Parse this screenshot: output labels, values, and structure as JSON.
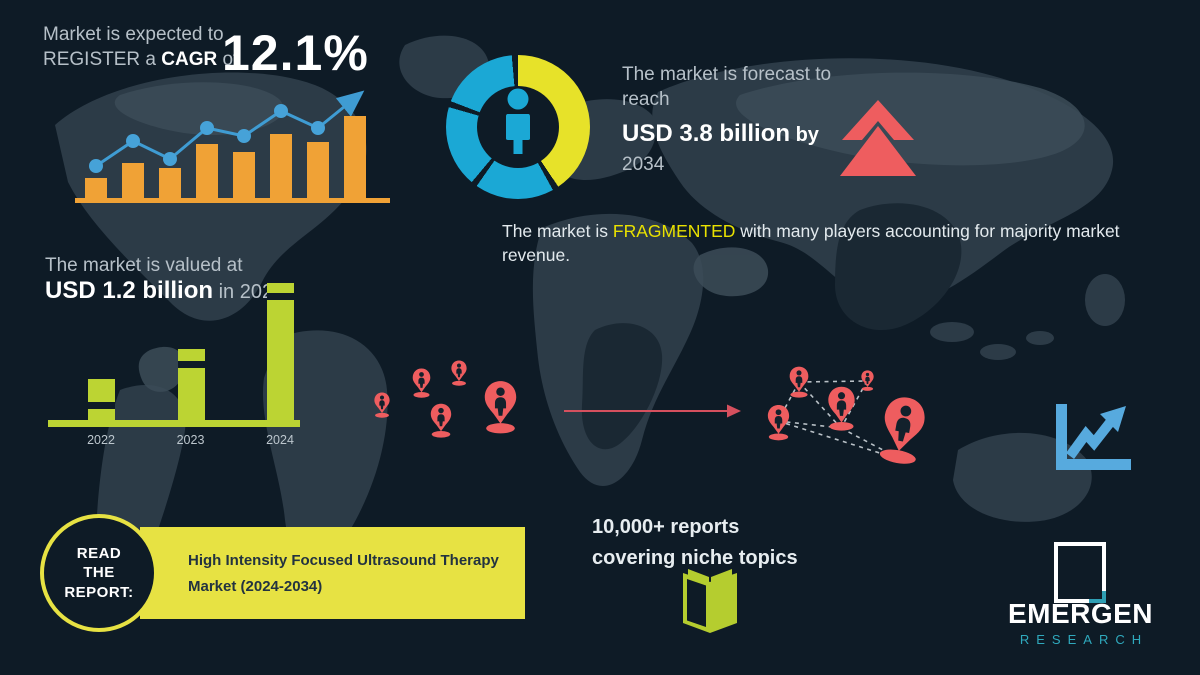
{
  "colors": {
    "background": "#0e1b26",
    "map_land": "#2c3b47",
    "map_land_dark": "#1a2833",
    "orange": "#f0a236",
    "trend_blue": "#3f9cd3",
    "donut_yellow": "#e7e229",
    "donut_cyan": "#1ba8d5",
    "red": "#ee5d5f",
    "arrow_red": "#d5505e",
    "green": "#bcd433",
    "banner_yellow": "#e7e243",
    "fragmented_yellow": "#e9e100",
    "teal": "#2fa9bd"
  },
  "cagr_block": {
    "line1": "Market is expected to",
    "line2_a": "REGISTER a ",
    "line2_b": "CAGR",
    "line2_c": " of",
    "value": "12.1%"
  },
  "forecast_block": {
    "line1": "The market is forecast to",
    "line2": "reach",
    "value": "USD 3.8 billion",
    "by": " by",
    "year": "2034"
  },
  "fragmented_block": {
    "a": "The market is ",
    "b": "FRAGMENTED",
    "c": " with many players accounting for majority market revenue."
  },
  "valuation_block": {
    "line1": "The market is valued at",
    "value": "USD 1.2 billion",
    "suffix": " in 2024"
  },
  "reports_block": {
    "line1": "10,000+ reports",
    "line2": "covering niche topics"
  },
  "read_report": {
    "circle_line1": "READ",
    "circle_line2": "THE",
    "circle_line3": "REPORT:",
    "title_line1": "High Intensity Focused Ultrasound Therapy",
    "title_line2": "Market (2024-2034)"
  },
  "logo": {
    "brand": "EMERGEN",
    "sub": "RESEARCH"
  },
  "chart_data": [
    {
      "type": "bar",
      "name": "cagr-growth-chart",
      "title": "Stylized growth bars with rising trend line (CAGR 12.1%)",
      "values_rel": [
        20,
        35,
        30,
        54,
        46,
        64,
        56,
        82
      ],
      "trend_rel": [
        32,
        57,
        39,
        70,
        62,
        87,
        70,
        100
      ],
      "bar_color": "#f0a236",
      "line_color": "#3f9cd3",
      "legend": "none",
      "grid": false
    },
    {
      "type": "pie",
      "name": "market-share-donut",
      "title": "Donut chart with person icon (fragmented market)",
      "segments": [
        {
          "label": "yellow-share",
          "color": "#e7e229",
          "deg": 146
        },
        {
          "label": "gap",
          "color": "#0e1b26",
          "deg": 5
        },
        {
          "label": "cyan-share-1",
          "color": "#1ba8d5",
          "deg": 64
        },
        {
          "label": "gap",
          "color": "#0e1b26",
          "deg": 5
        },
        {
          "label": "cyan-share-2",
          "color": "#1ba8d5",
          "deg": 66
        },
        {
          "label": "gap",
          "color": "#0e1b26",
          "deg": 5
        },
        {
          "label": "cyan-share-3",
          "color": "#1ba8d5",
          "deg": 64
        },
        {
          "label": "gap",
          "color": "#0e1b26",
          "deg": 5
        }
      ]
    },
    {
      "type": "bar",
      "name": "market-valuation-chart",
      "title": "Market value by year",
      "categories": [
        "2022",
        "2023",
        "2024"
      ],
      "values_usd_billion": [
        0.36,
        0.62,
        1.2
      ],
      "unit": "USD billion",
      "bar_color": "#bcd433",
      "stripe_offsets": [
        23,
        12,
        10
      ],
      "ylim": [
        0,
        1.3
      ],
      "grid": false
    }
  ]
}
